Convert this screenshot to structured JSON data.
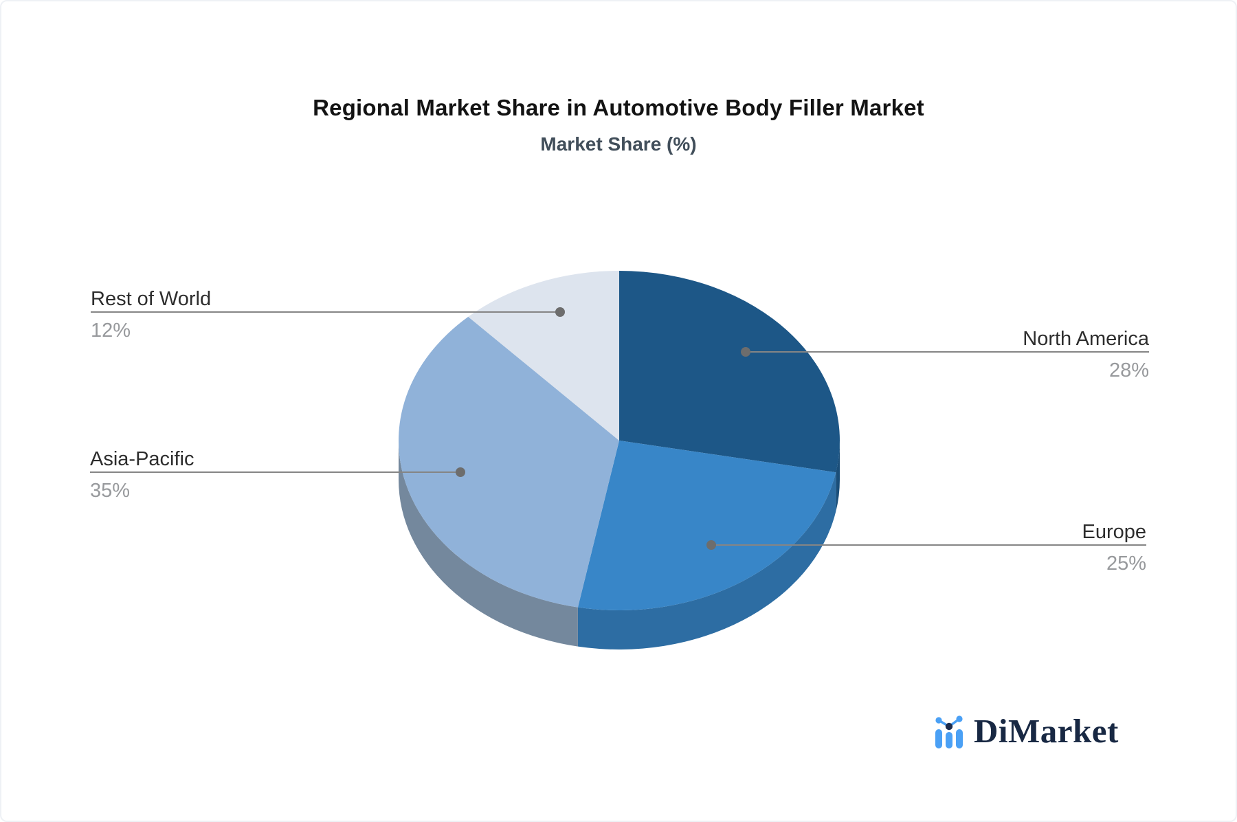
{
  "title": "Regional Market Share in Automotive Body Filler Market",
  "subtitle": "Market Share (%)",
  "brand": {
    "name": "DiMarket",
    "icon": "bar-line-chart-icon",
    "icon_color": "#4aa0f5",
    "text_color": "#182843"
  },
  "chart_data": {
    "type": "pie",
    "title": "Regional Market Share in Automotive Body Filler Market",
    "subtitle": "Market Share (%)",
    "effect": "3d",
    "start_angle_deg": -90,
    "direction": "clockwise",
    "legend_position": "none",
    "labels_style": "leader-lines",
    "slices": [
      {
        "label": "North America",
        "value": 28,
        "pct": "28%",
        "color": "#1d5787",
        "side_color": "#1a4e79"
      },
      {
        "label": "Europe",
        "value": 25,
        "pct": "25%",
        "color": "#3886c8",
        "side_color": "#2d6da3"
      },
      {
        "label": "Asia-Pacific",
        "value": 35,
        "pct": "35%",
        "color": "#90b2d9",
        "side_color": "#74889d"
      },
      {
        "label": "Rest of World",
        "value": 12,
        "pct": "12%",
        "color": "#dde4ee",
        "side_color": null
      }
    ],
    "leader_line_color": "#858585",
    "leader_dot_color": "#6d6d6d",
    "label_color": "#2d2d2d",
    "pct_color": "#97999c"
  }
}
